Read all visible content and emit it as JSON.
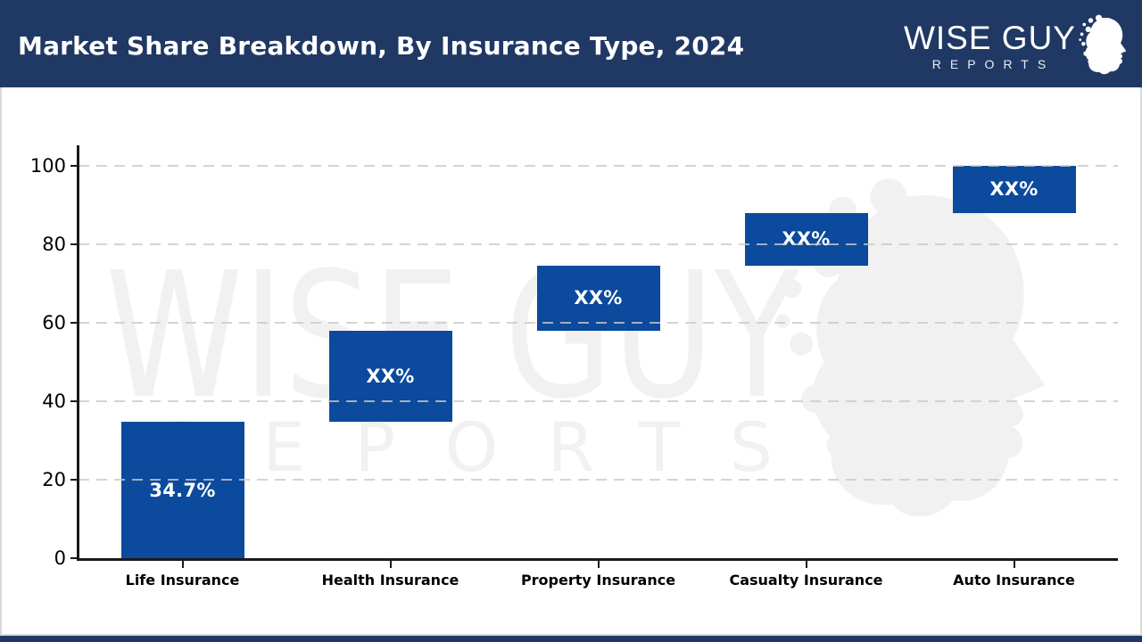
{
  "header": {
    "title": "Market Share Breakdown, By Insurance Type, 2024",
    "logo": {
      "primary": "WISE GUY",
      "secondary": "REPORTS"
    }
  },
  "watermark": {
    "primary": "WISE GUY",
    "secondary": "REPORTS"
  },
  "colors": {
    "header_bg": "#203864",
    "footer_bg": "#203864",
    "bar": "#0b4a9c",
    "bar_label": "#ffffff",
    "gridline": "#c9c9c9",
    "axis": "#1a1a1a",
    "tick_label": "#000000",
    "watermark": "#f1f1f2",
    "frame_border": "#d9d9d9"
  },
  "chart_data": {
    "type": "bar",
    "subtype": "waterfall (floating cumulative segments)",
    "title": "Market Share Breakdown, By Insurance Type, 2024",
    "categories": [
      "Life Insurance",
      "Health Insurance",
      "Property Insurance",
      "Casualty Insurance",
      "Auto Insurance"
    ],
    "series": [
      {
        "name": "Market share (%)",
        "segments": [
          {
            "start": 0,
            "end": 34.7,
            "label": "34.7%"
          },
          {
            "start": 34.7,
            "end": 58,
            "label": "XX%"
          },
          {
            "start": 58,
            "end": 74.5,
            "label": "XX%"
          },
          {
            "start": 74.5,
            "end": 88,
            "label": "XX%"
          },
          {
            "start": 88,
            "end": 100,
            "label": "XX%"
          }
        ]
      }
    ],
    "xlabel": "",
    "ylabel": "",
    "ylim": [
      0,
      100
    ],
    "yticks": [
      0,
      20,
      40,
      60,
      80,
      100
    ],
    "grid": "horizontal dashed",
    "legend": "none"
  }
}
